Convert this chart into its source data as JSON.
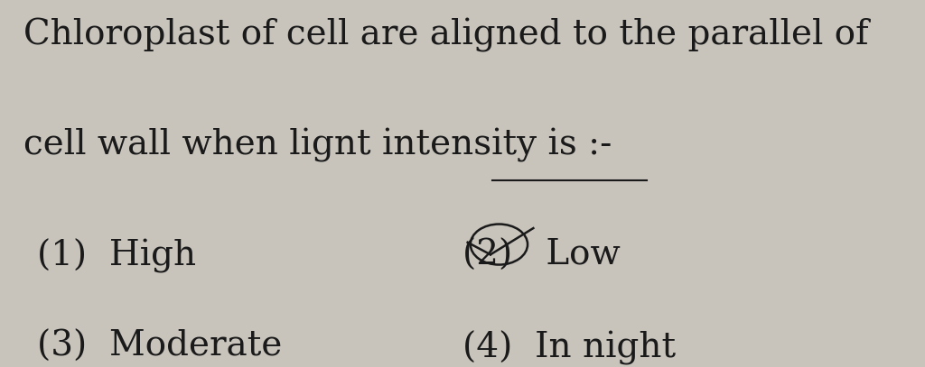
{
  "bg_color": "#c8c4bc",
  "text_color": "#1a1a1a",
  "question_line1": "Chloroplast of cell are aligned to the parallel of",
  "question_line2": "cell wall when lignt intensity is :-",
  "underline_start": "cell wall when lignt ",
  "underline_word": "intensity",
  "opt1_num": "(1)",
  "opt1_txt": "High",
  "opt2_num": "(2)",
  "opt2_txt": "Low",
  "opt3_num": "(3)",
  "opt3_txt": "Moderate",
  "opt4_num": "(4)",
  "opt4_txt": "In night",
  "font_size_q": 28,
  "font_size_o": 28,
  "figsize": [
    10.24,
    4.07
  ],
  "dpi": 100
}
